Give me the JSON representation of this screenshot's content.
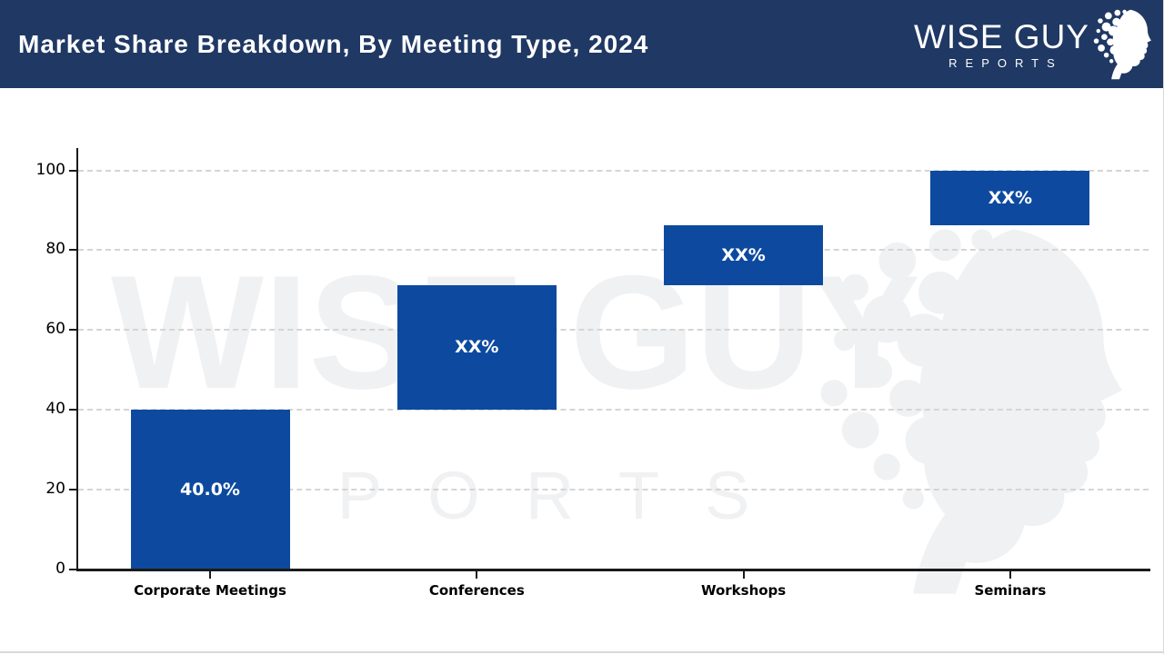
{
  "header": {
    "title": "Market Share Breakdown, By Meeting Type, 2024",
    "bg_color": "#1F3864",
    "logo": {
      "name": "WISE GUY",
      "sub": "REPORTS"
    }
  },
  "watermark": {
    "name": "WISE GUY",
    "sub": "PORTS",
    "full_sub": "REPORTS"
  },
  "chart_data": {
    "type": "bar",
    "variant": "waterfall",
    "title": "Market Share Breakdown, By Meeting Type, 2024",
    "xlabel": "",
    "ylabel": "",
    "ylim": [
      0,
      100
    ],
    "yticks": [
      0,
      20,
      40,
      60,
      80,
      100
    ],
    "grid": "horizontal-dashed",
    "legend_position": "none",
    "bar_color": "#0D4A9F",
    "categories": [
      "Corporate Meetings",
      "Conferences",
      "Workshops",
      "Seminars"
    ],
    "segments": [
      {
        "category": "Corporate Meetings",
        "from": 0,
        "to": 40,
        "label": "40.0%"
      },
      {
        "category": "Conferences",
        "from": 40,
        "to": 71.2,
        "label": "XX%"
      },
      {
        "category": "Workshops",
        "from": 71.2,
        "to": 86.2,
        "label": "XX%"
      },
      {
        "category": "Seminars",
        "from": 86.2,
        "to": 100,
        "label": "XX%"
      }
    ]
  }
}
